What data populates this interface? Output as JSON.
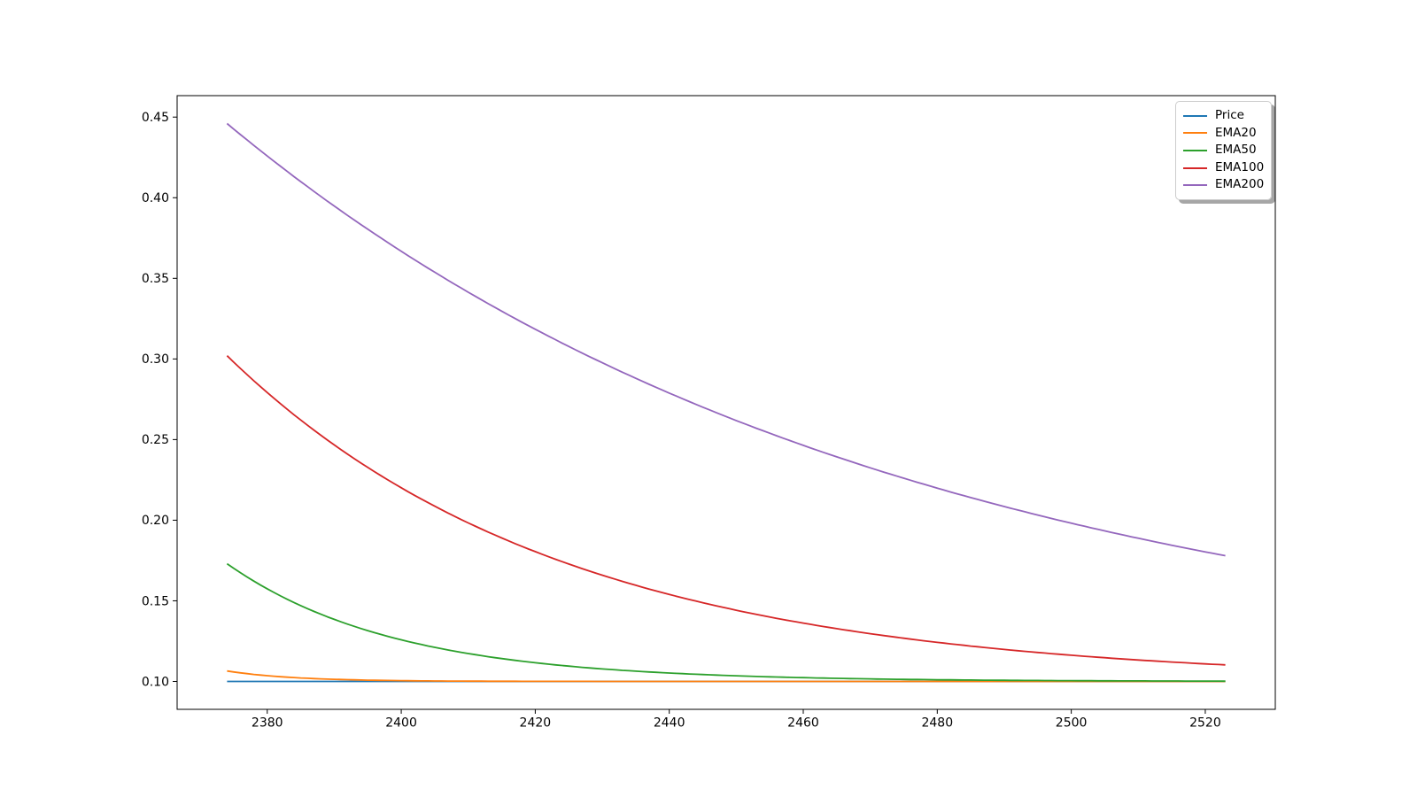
{
  "figure": {
    "background_color": "#ffffff",
    "plot_background_color": "#ffffff",
    "spine_color": "#000000"
  },
  "legend": {
    "position": "upper-right",
    "border_color": "#cccccc",
    "shadow": true
  },
  "chart_data": {
    "type": "line",
    "title": "",
    "subtitle": "",
    "xlabel": "",
    "ylabel": "",
    "grid": false,
    "legend_position": "upper right",
    "xlim": [
      2366.55,
      2530.45
    ],
    "ylim": [
      0.0827,
      0.4633
    ],
    "x_tick_values": [
      2380,
      2400,
      2420,
      2440,
      2460,
      2480,
      2500,
      2520
    ],
    "x_tick_labels": [
      "2380",
      "2400",
      "2420",
      "2440",
      "2460",
      "2480",
      "2500",
      "2520"
    ],
    "y_tick_values": [
      0.1,
      0.15,
      0.2,
      0.25,
      0.3,
      0.35,
      0.4,
      0.45
    ],
    "y_tick_labels": [
      "0.10",
      "0.15",
      "0.20",
      "0.25",
      "0.30",
      "0.35",
      "0.40",
      "0.45"
    ],
    "x_start": 2374,
    "x_step": 1,
    "n_points": 150,
    "sampled_x": [
      2374,
      2384,
      2394,
      2404,
      2414,
      2424,
      2434,
      2444,
      2454,
      2464,
      2474,
      2484,
      2494,
      2504,
      2514,
      2523
    ],
    "series": [
      {
        "name": "Price",
        "color": "#1f77b4",
        "model": {
          "base": 0.1,
          "amplitude": 0.0,
          "decay_per_step": 1.0
        },
        "sampled_values": [
          0.1,
          0.1,
          0.1,
          0.1,
          0.1,
          0.1,
          0.1,
          0.1,
          0.1,
          0.1,
          0.1,
          0.1,
          0.1,
          0.1,
          0.1,
          0.1
        ]
      },
      {
        "name": "EMA20",
        "color": "#ff7f0e",
        "model": {
          "base": 0.1,
          "amplitude": 0.0065,
          "decay_per_step": 0.9047619
        },
        "sampled_values": [
          0.1065,
          0.1024,
          0.1009,
          0.1003,
          0.1001,
          0.1,
          0.1,
          0.1,
          0.1,
          0.1,
          0.1,
          0.1,
          0.1,
          0.1,
          0.1,
          0.1
        ]
      },
      {
        "name": "EMA50",
        "color": "#2ca02c",
        "model": {
          "base": 0.1,
          "amplitude": 0.073,
          "decay_per_step": 0.9607843
        },
        "sampled_values": [
          0.173,
          0.1489,
          0.1328,
          0.122,
          0.1147,
          0.1099,
          0.1066,
          0.1044,
          0.103,
          0.102,
          0.1013,
          0.1009,
          0.1006,
          0.1004,
          0.1003,
          0.1002
        ]
      },
      {
        "name": "EMA100",
        "color": "#d62728",
        "model": {
          "base": 0.1,
          "amplitude": 0.202,
          "decay_per_step": 0.980198
        },
        "sampled_values": [
          0.302,
          0.2654,
          0.2354,
          0.2109,
          0.1908,
          0.1743,
          0.1608,
          0.1498,
          0.1408,
          0.1334,
          0.1273,
          0.1224,
          0.1183,
          0.115,
          0.1123,
          0.1103
        ]
      },
      {
        "name": "EMA200",
        "color": "#9467bd",
        "model": {
          "base": 0.1,
          "amplitude": 0.346,
          "decay_per_step": 0.9900498
        },
        "sampled_values": [
          0.446,
          0.4131,
          0.3833,
          0.3563,
          0.3319,
          0.3099,
          0.2899,
          0.2718,
          0.2555,
          0.2407,
          0.2273,
          0.2152,
          0.2042,
          0.1943,
          0.1853,
          0.1786
        ]
      }
    ]
  }
}
